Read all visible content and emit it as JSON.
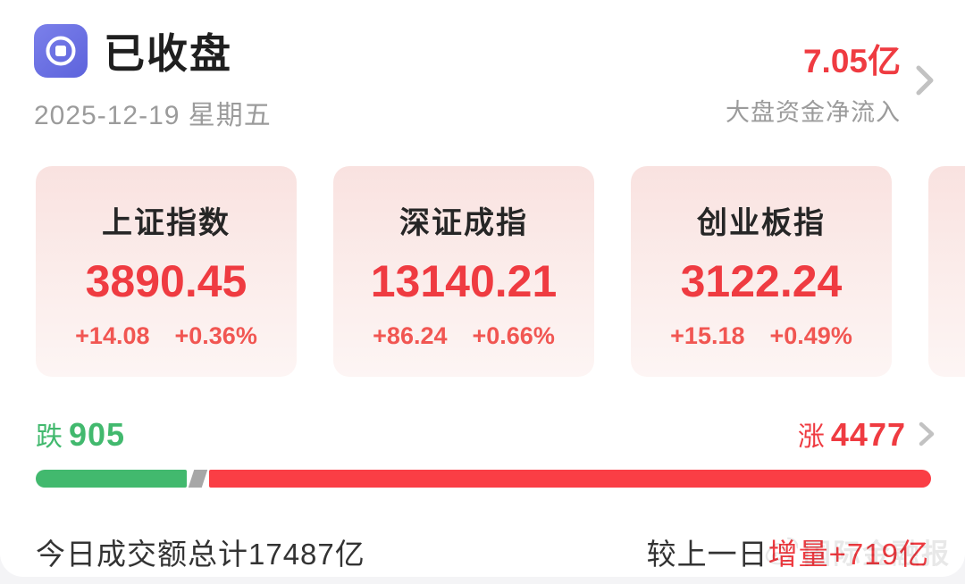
{
  "header": {
    "status_title": "已收盘",
    "date": "2025-12-19 星期五",
    "net_inflow": {
      "value": "7.05亿",
      "label": "大盘资金净流入"
    }
  },
  "indices": [
    {
      "name": "上证指数",
      "value": "3890.45",
      "change": "+14.08",
      "change_pct": "+0.36%"
    },
    {
      "name": "深证成指",
      "value": "13140.21",
      "change": "+86.24",
      "change_pct": "+0.66%"
    },
    {
      "name": "创业板指",
      "value": "3122.24",
      "change": "+15.18",
      "change_pct": "+0.49%"
    },
    {
      "name": "",
      "value": "",
      "change": "+",
      "change_pct": ""
    }
  ],
  "breadth": {
    "down_label": "跌",
    "down_count": "905",
    "up_label": "涨",
    "up_count": "4477",
    "bar": {
      "down_ratio": 0.169,
      "flat_ratio": 0.015,
      "up_ratio": 0.816
    }
  },
  "turnover": {
    "today_text": "今日成交额总计17487亿",
    "compare_label": "较上一日",
    "compare_highlight": "增量+719亿"
  },
  "watermark": {
    "source": "国际金融报"
  },
  "colors": {
    "up_red": "#EF3B41",
    "up_red_soft": "#F15652",
    "up_red_bar": "#FA3E45",
    "down_green": "#42B96E",
    "flat_gray": "#A7A7A7",
    "accent_icon": "#5D63DC",
    "accent_icon_light": "#7B80EA"
  }
}
